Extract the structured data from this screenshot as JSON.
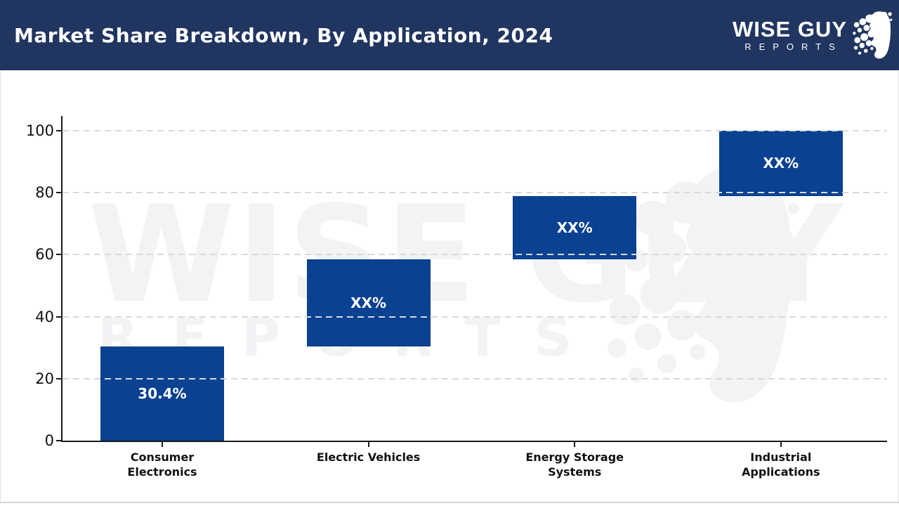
{
  "page": {
    "background": "#ffffff",
    "edge_border_color": "#d4d4d4"
  },
  "header": {
    "bg_color": "#203560",
    "title": "Market Share Breakdown, By Application, 2024",
    "logo": {
      "line1": "WISE GUY",
      "line2": "REPORTS"
    }
  },
  "watermark": {
    "line1": "WISE GUY",
    "line2": "REPORTS"
  },
  "chart_data": {
    "type": "bar",
    "variant": "waterfall",
    "title": "Market Share Breakdown, By Application, 2024",
    "xlabel": "",
    "ylabel": "",
    "categories": [
      "Consumer Electronics",
      "Electric Vehicles",
      "Energy Storage Systems",
      "Industrial Applications"
    ],
    "category_label_lines": [
      [
        "Consumer",
        "Electronics"
      ],
      [
        "Electric Vehicles"
      ],
      [
        "Energy Storage",
        "Systems"
      ],
      [
        "Industrial",
        "Applications"
      ]
    ],
    "segments": [
      {
        "category": "Consumer Electronics",
        "start": 0,
        "end": 30.4,
        "label": "30.4%"
      },
      {
        "category": "Electric Vehicles",
        "start": 30.4,
        "end": 58.4,
        "label": "XX%"
      },
      {
        "category": "Energy Storage Systems",
        "start": 58.4,
        "end": 79.0,
        "label": "XX%"
      },
      {
        "category": "Industrial Applications",
        "start": 79.0,
        "end": 100.0,
        "label": "XX%"
      }
    ],
    "yticks": [
      0,
      20,
      40,
      60,
      80,
      100
    ],
    "ylim": [
      0,
      105
    ],
    "grid": {
      "axis": "y",
      "style": "dashed",
      "color": "#d9d9d9",
      "drawn_over_bars": true
    },
    "legend": null,
    "bar_color": "#0a4191",
    "bar_label_color": "#ffffff",
    "axis_color": "#1a1a1a",
    "tick_label_color": "#111111"
  }
}
